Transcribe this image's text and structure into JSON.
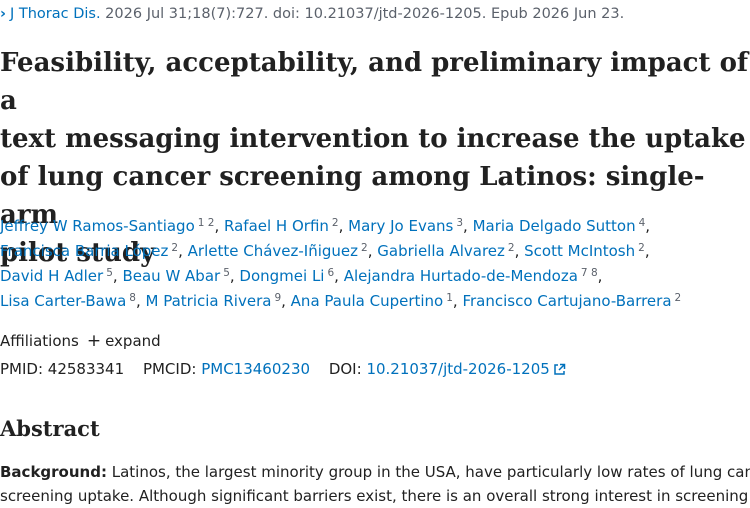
{
  "citation": {
    "chevron": "›",
    "journal": "J Thorac Dis.",
    "details": " 2026 Jul 31;18(7):727. doi: 10.21037/jtd-2026-1205. Epub 2026 Jun 23."
  },
  "title_lines": [
    "Feasibility, acceptability, and preliminary impact of a",
    "text messaging intervention to increase the uptake",
    "of lung cancer screening among Latinos: single-arm",
    "pilot study"
  ],
  "authors": [
    {
      "name": "Jeffrey W Ramos-Santiago",
      "sup": "1 2"
    },
    {
      "name": "Rafael H Orfin",
      "sup": "2"
    },
    {
      "name": "Mary Jo Evans",
      "sup": "3"
    },
    {
      "name": "Maria Delgado Sutton",
      "sup": "4"
    },
    {
      "name": "Francisca Barria López",
      "sup": "2"
    },
    {
      "name": "Arlette Chávez-Iñiguez",
      "sup": "2"
    },
    {
      "name": "Gabriella Alvarez",
      "sup": "2"
    },
    {
      "name": "Scott McIntosh",
      "sup": "2"
    },
    {
      "name": "David H Adler",
      "sup": "5"
    },
    {
      "name": "Beau W Abar",
      "sup": "5"
    },
    {
      "name": "Dongmei Li",
      "sup": "6"
    },
    {
      "name": "Alejandra Hurtado-de-Mendoza",
      "sup": "7 8"
    },
    {
      "name": "Lisa Carter-Bawa",
      "sup": "8"
    },
    {
      "name": "M Patricia Rivera",
      "sup": "9"
    },
    {
      "name": "Ana Paula Cupertino",
      "sup": "1"
    },
    {
      "name": "Francisco Cartujano-Barrera",
      "sup": "2"
    }
  ],
  "affiliations": {
    "label": "Affiliations",
    "expand_icon": "+",
    "expand_label": "expand"
  },
  "ids": {
    "pmid_label": "PMID:",
    "pmid": "42583341",
    "pmcid_label": "PMCID:",
    "pmcid": "PMC13460230",
    "doi_label": "DOI:",
    "doi": "10.21037/jtd-2026-1205",
    "doi_icon": "external-link-icon"
  },
  "abstract": {
    "heading": "Abstract",
    "background_label": "Background:",
    "line1": "Latinos, the largest minority group in the USA, have particularly low rates of lung cancer",
    "line2": "screening uptake. Although significant barriers exist, there is an overall strong interest in screening"
  }
}
